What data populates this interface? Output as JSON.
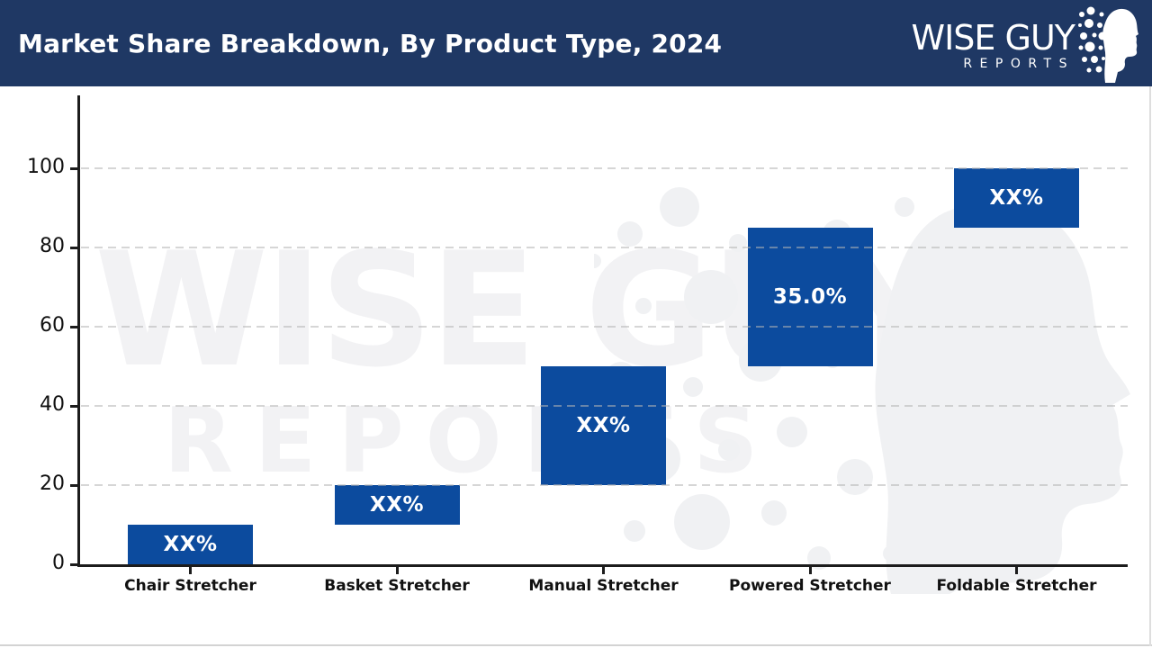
{
  "header": {
    "title": "Market Share Breakdown, By Product Type, 2024",
    "logo": {
      "name": "WISE GUY",
      "subname": "REPORTS"
    }
  },
  "watermark": {
    "name": "WISE GUY",
    "subname": "REPORTS"
  },
  "chart_data": {
    "type": "bar",
    "subtype": "waterfall",
    "title": "Market Share Breakdown, By Product Type, 2024",
    "categories": [
      "Chair Stretcher",
      "Basket Stretcher",
      "Manual Stretcher",
      "Powered Stretcher",
      "Foldable Stretcher"
    ],
    "bars": [
      {
        "category": "Chair Stretcher",
        "start": 0,
        "end": 10,
        "value": 10,
        "label": "XX%"
      },
      {
        "category": "Basket Stretcher",
        "start": 10,
        "end": 20,
        "value": 10,
        "label": "XX%"
      },
      {
        "category": "Manual Stretcher",
        "start": 20,
        "end": 50,
        "value": 30,
        "label": "XX%"
      },
      {
        "category": "Powered Stretcher",
        "start": 50,
        "end": 85,
        "value": 35,
        "label": "35.0%"
      },
      {
        "category": "Foldable Stretcher",
        "start": 85,
        "end": 100,
        "value": 15,
        "label": "XX%"
      }
    ],
    "xlabel": "",
    "ylabel": "",
    "ylim": [
      0,
      100
    ],
    "yticks": [
      0,
      20,
      40,
      60,
      80,
      100
    ],
    "grid": "horizontal dashed",
    "legend": "none",
    "colors": {
      "bar": "#0c4b9e",
      "bar_label": "#ffffff",
      "header_bg": "#1f3864",
      "grid": "#d9d9d9",
      "axis": "#1c1c1c",
      "watermark": "#f2f2f4"
    }
  }
}
